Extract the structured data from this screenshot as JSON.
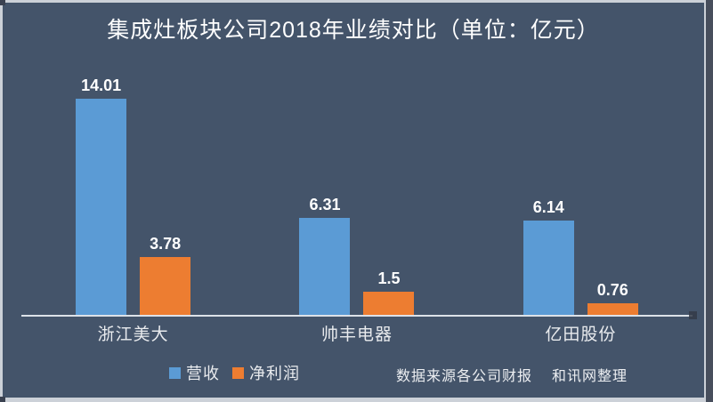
{
  "window": {
    "frame_color": "#ccd1d8",
    "panel_color": "#44546a",
    "edge_strip_color": "#474e5c"
  },
  "chart_data": {
    "type": "bar",
    "title": "集成灶板块公司2018年业绩对比（单位：亿元）",
    "categories": [
      "浙江美大",
      "帅丰电器",
      "亿田股份"
    ],
    "series": [
      {
        "name": "营收",
        "color": "#5b9bd5",
        "values": [
          14.01,
          6.31,
          6.14
        ]
      },
      {
        "name": "净利润",
        "color": "#ed7d31",
        "values": [
          3.78,
          1.5,
          0.76
        ]
      }
    ],
    "value_labels": [
      [
        "14.01",
        "3.78"
      ],
      [
        "6.31",
        "1.5"
      ],
      [
        "6.14",
        "0.76"
      ]
    ],
    "xlabel": "",
    "ylabel": "",
    "ylim": [
      0,
      16
    ],
    "grid": false,
    "y_axis_visible": false,
    "legend_position": "bottom-left",
    "axis_line_color": "#dde2e8",
    "value_label_color": "#ffffff",
    "category_label_color": "#e9ebee",
    "title_color": "#ffffff"
  },
  "footer": {
    "source_text": "数据来源各公司财报",
    "credit_text": "和讯网整理"
  }
}
